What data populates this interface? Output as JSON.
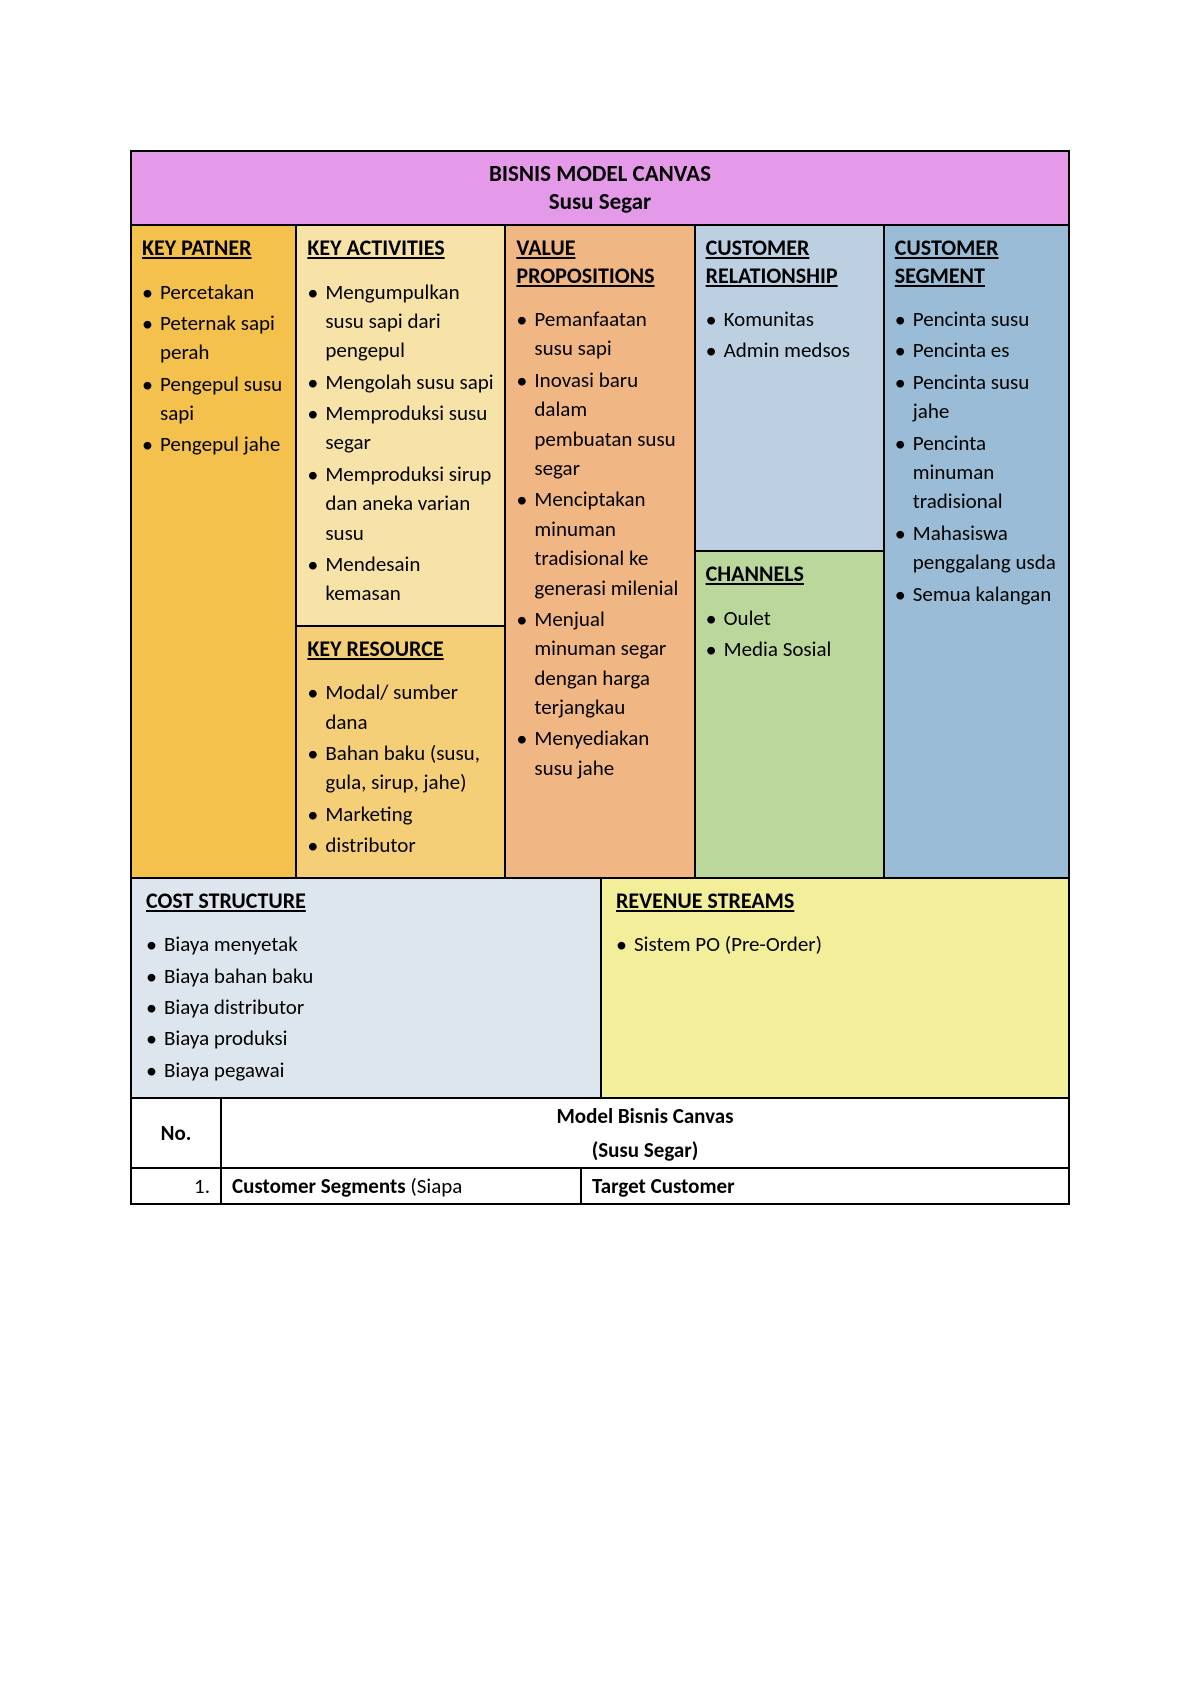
{
  "header": {
    "title": "BISNIS MODEL CANVAS",
    "subtitle": "Susu Segar",
    "bg": "#e49ae8"
  },
  "blocks": {
    "key_partner": {
      "title": "KEY PATNER",
      "bg": "#f4c14c",
      "items": [
        "Percetakan",
        "Peternak sapi perah",
        "Pengepul susu sapi",
        "Pengepul jahe"
      ]
    },
    "key_activities": {
      "title": "KEY ACTIVITIES",
      "bg": "#f7e3a8",
      "items": [
        "Mengumpulkan susu sapi dari pengepul",
        "Mengolah susu sapi",
        "Memproduksi susu segar",
        "Memproduksi sirup dan aneka varian susu",
        "Mendesain kemasan"
      ]
    },
    "key_resource": {
      "title": "KEY RESOURCE",
      "bg": "#f5cf78",
      "items": [
        "Modal/ sumber dana",
        "Bahan baku (susu, gula, sirup, jahe)",
        "Marketing",
        "distributor"
      ]
    },
    "value_propositions": {
      "title": "VALUE PROPOSITIONS",
      "bg": "#f0b784",
      "items": [
        "Pemanfaatan susu sapi",
        "Inovasi baru dalam pembuatan susu segar",
        "Menciptakan minuman tradisional ke generasi milenial",
        "Menjual minuman segar dengan harga terjangkau",
        "Menyediakan susu jahe"
      ]
    },
    "customer_relationship": {
      "title": "CUSTOMER RELATIONSHIP",
      "bg": "#bcd0e2",
      "items": [
        "Komunitas",
        "Admin medsos"
      ]
    },
    "channels": {
      "title": "CHANNELS",
      "bg": "#bcd79b",
      "items": [
        "Oulet",
        "Media Sosial"
      ]
    },
    "customer_segment": {
      "title": "CUSTOMER SEGMENT",
      "bg": "#9abcd6",
      "items": [
        "Pencinta susu",
        "Pencinta es",
        "Pencinta susu jahe",
        "Pencinta minuman tradisional",
        "Mahasiswa penggalang usda",
        "Semua kalangan"
      ]
    },
    "cost_structure": {
      "title": "COST STRUCTURE",
      "bg": "#dde5ee",
      "items": [
        "Biaya menyetak",
        "Biaya bahan baku",
        "Biaya distributor",
        "Biaya produksi",
        "Biaya pegawai"
      ]
    },
    "revenue_streams": {
      "title": "REVENUE STREAMS ",
      "bg": "#f2ee9a",
      "items": [
        "Sistem PO (Pre-Order)"
      ]
    }
  },
  "footer": {
    "col_no": "No.",
    "title_line1": "Model Bisnis Canvas",
    "title_line2": "(Susu Segar)",
    "row1_no": "1.",
    "row1_left_bold": "Customer Segments",
    "row1_left_rest": " (Siapa",
    "row1_right": "Target Customer"
  }
}
